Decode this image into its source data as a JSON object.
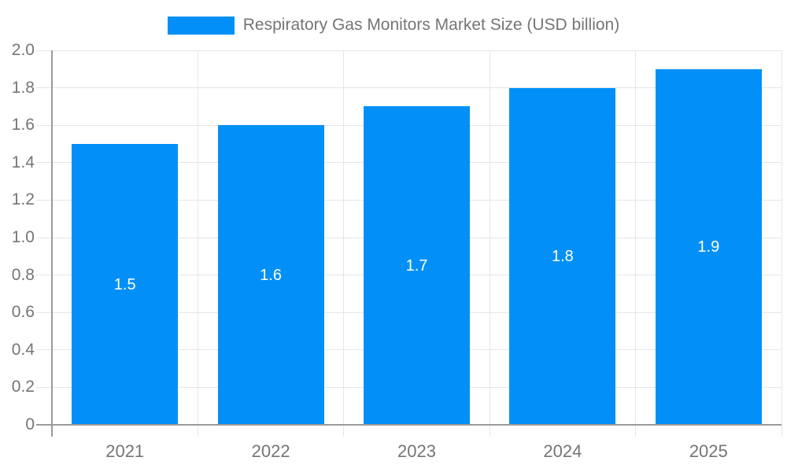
{
  "chart_data": {
    "type": "bar",
    "title": "Respiratory Gas Monitors Market Size (USD billion)",
    "categories": [
      "2021",
      "2022",
      "2023",
      "2024",
      "2025"
    ],
    "values": [
      1.5,
      1.6,
      1.7,
      1.8,
      1.9
    ],
    "bar_labels": [
      "1.5",
      "1.6",
      "1.7",
      "1.8",
      "1.9"
    ],
    "xlabel": "",
    "ylabel": "",
    "ylim": [
      0,
      2.0
    ],
    "ytick_labels": [
      "0",
      "0.2",
      "0.4",
      "0.6",
      "0.8",
      "1.0",
      "1.2",
      "1.4",
      "1.6",
      "1.8",
      "2.0"
    ],
    "grid": true,
    "legend_position": "top",
    "colors": {
      "bar": "#0290f8",
      "grid": "#e6e6e6",
      "axis": "#9a9a9a",
      "tick_text": "#757575",
      "bar_label_text": "#ffffff",
      "background": "#ffffff"
    }
  },
  "legend": {
    "label": "Respiratory Gas Monitors Market Size (USD billion)",
    "swatch_color": "#0290f8"
  }
}
